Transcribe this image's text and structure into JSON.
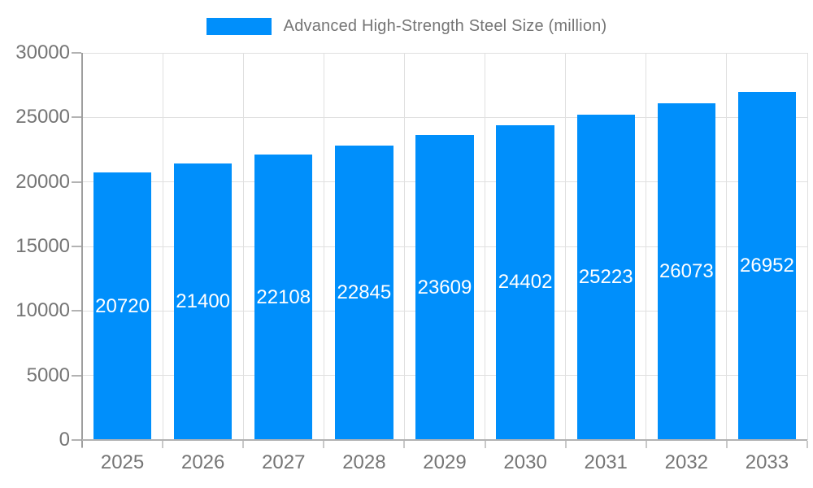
{
  "legend": {
    "label": "Advanced High-Strength Steel Size (million)",
    "swatch_color": "#008FFB"
  },
  "chart_data": {
    "type": "bar",
    "title": "Advanced High-Strength Steel Size (million)",
    "series_name": "Advanced High-Strength Steel Size (million)",
    "categories": [
      "2025",
      "2026",
      "2027",
      "2028",
      "2029",
      "2030",
      "2031",
      "2032",
      "2033"
    ],
    "values": [
      20720,
      21400,
      22108,
      22845,
      23609,
      24402,
      25223,
      26073,
      26952
    ],
    "data_labels": [
      "20720",
      "21400",
      "22108",
      "22845",
      "23609",
      "24402",
      "25223",
      "26073",
      "26952"
    ],
    "xlabel": "",
    "ylabel": "",
    "ylim": [
      0,
      30000
    ],
    "yticks": [
      0,
      5000,
      10000,
      15000,
      20000,
      25000,
      30000
    ],
    "grid": {
      "horizontal": true,
      "vertical": true
    },
    "legend_position": "top-center",
    "colors": {
      "bar": "#008FFB",
      "bar_label": "#ffffff",
      "axis_text": "#757575",
      "gridline": "#e0e0e0",
      "y_axis_line": "#9e9e9e",
      "x_axis_line": "#b3b3b3"
    },
    "bar_width_fraction": 0.72
  }
}
